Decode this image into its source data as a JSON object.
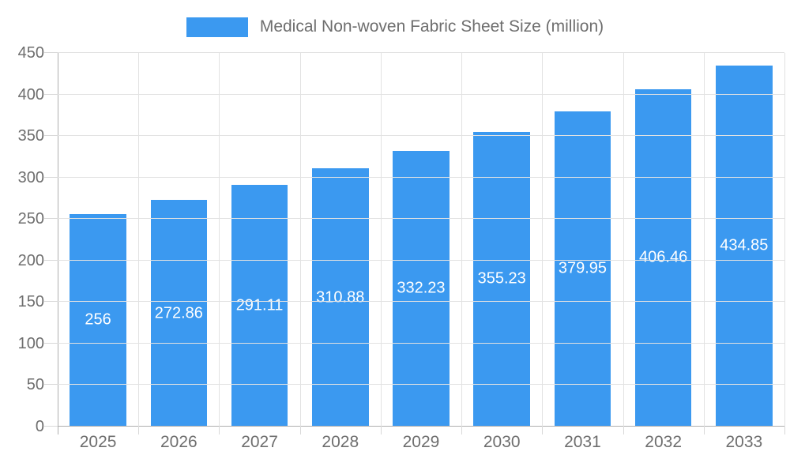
{
  "chart_data": {
    "type": "bar",
    "title": "Medical Non-woven Fabric Sheet Size (million)",
    "categories": [
      "2025",
      "2026",
      "2027",
      "2028",
      "2029",
      "2030",
      "2031",
      "2032",
      "2033"
    ],
    "values": [
      256,
      272.86,
      291.11,
      310.88,
      332.23,
      355.23,
      379.95,
      406.46,
      434.85
    ],
    "value_labels": [
      "256",
      "272.86",
      "291.11",
      "310.88",
      "332.23",
      "355.23",
      "379.95",
      "406.46",
      "434.85"
    ],
    "xlabel": "",
    "ylabel": "",
    "ylim": [
      0,
      450
    ],
    "ytick_step": 50,
    "grid": true,
    "legend_position": "top",
    "colors": {
      "bar": "#3b99f0",
      "bar_label": "#ffffff",
      "axis": "#b0b0b0",
      "grid": "#e2e2e2",
      "tick": "#d8d8d8",
      "tick_text": "#6e6e6e",
      "legend_text": "#6e6e6e"
    }
  },
  "legend": {
    "items": [
      {
        "label": "Medical Non-woven Fabric Sheet Size (million)"
      }
    ]
  }
}
